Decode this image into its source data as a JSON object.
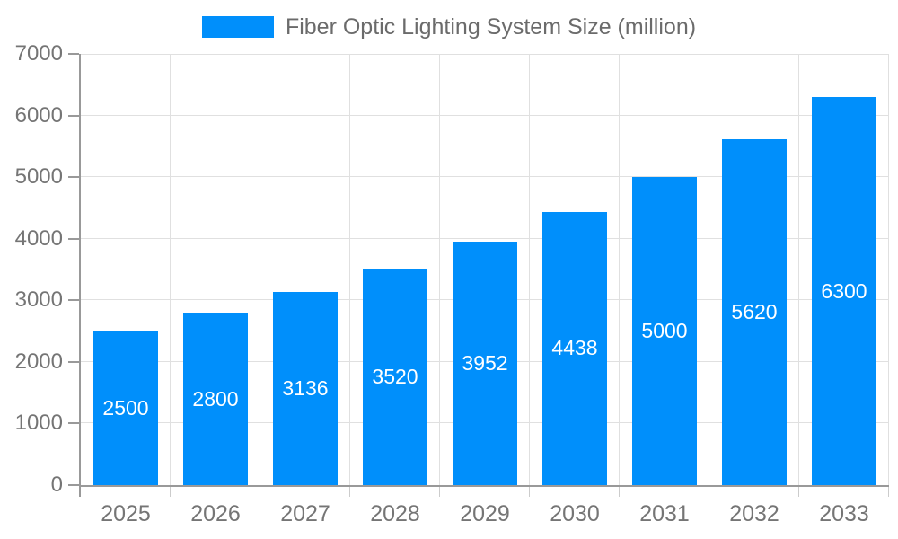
{
  "chart_data": {
    "type": "bar",
    "title": "",
    "legend": "Fiber Optic Lighting System Size (million)",
    "legend_position": "top-center",
    "categories": [
      "2025",
      "2026",
      "2027",
      "2028",
      "2029",
      "2030",
      "2031",
      "2032",
      "2033"
    ],
    "values": [
      2500,
      2800,
      3136,
      3520,
      3952,
      4438,
      5000,
      5620,
      6300
    ],
    "bar_value_labels": [
      "2500",
      "2800",
      "3136",
      "3520",
      "3952",
      "4438",
      "5000",
      "5620",
      "6300"
    ],
    "xlabel": "",
    "ylabel": "",
    "ylim": [
      0,
      7000
    ],
    "yticks": [
      0,
      1000,
      2000,
      3000,
      4000,
      5000,
      6000,
      7000
    ],
    "grid": true,
    "colors": {
      "bar": "#008FFB",
      "bar_label": "#FFFFFF",
      "axis_text": "#757575",
      "legend_text": "#6B6B6B",
      "grid_line": "#E0E0E0",
      "axis_line": "#999999",
      "tick_line": "#CCCCCC",
      "background": "#FFFFFF"
    }
  }
}
